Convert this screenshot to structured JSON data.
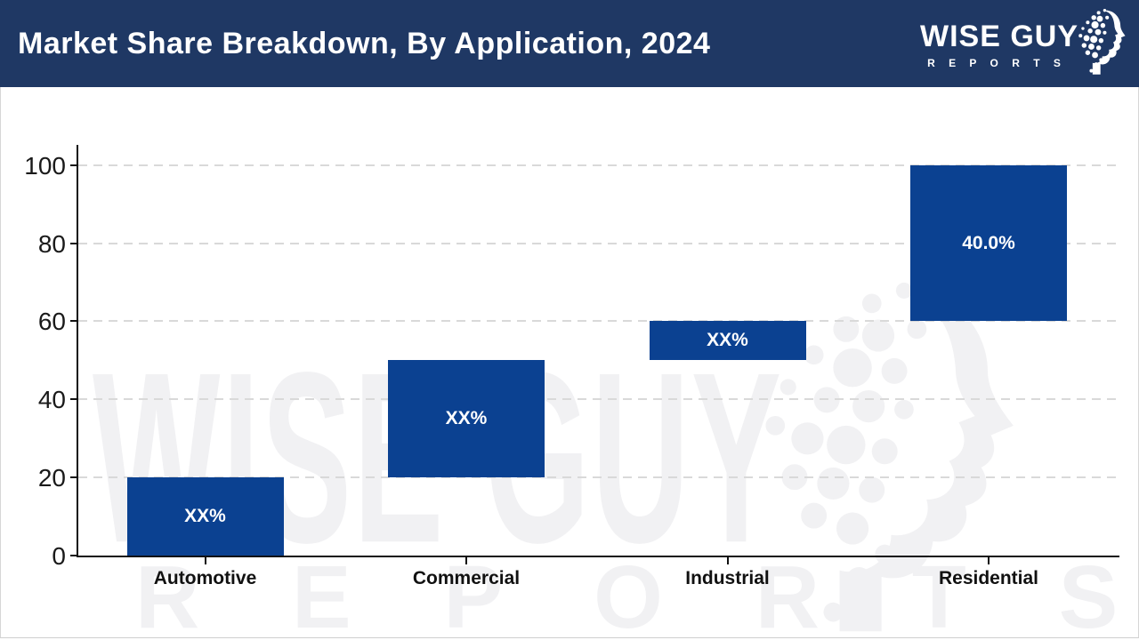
{
  "header": {
    "title": "Market Share Breakdown, By Application, 2024",
    "bg_color": "#1F3864",
    "logo": {
      "line1": "WISE GUY",
      "line2": "R E P O R T S"
    }
  },
  "watermark": {
    "line1": "WISE GUY",
    "line2": "R E P O R T S"
  },
  "chart_data": {
    "type": "bar",
    "variant": "floating-waterfall",
    "title": "Market Share Breakdown, By Application, 2024",
    "categories": [
      "Automotive",
      "Commercial",
      "Industrial",
      "Residential"
    ],
    "segments": [
      {
        "category": "Automotive",
        "start": 0,
        "end": 20,
        "label": "XX%"
      },
      {
        "category": "Commercial",
        "start": 20,
        "end": 50,
        "label": "XX%"
      },
      {
        "category": "Industrial",
        "start": 50,
        "end": 60,
        "label": "XX%"
      },
      {
        "category": "Residential",
        "start": 60,
        "end": 100,
        "label": "40.0%"
      }
    ],
    "yticks": [
      0,
      20,
      40,
      60,
      80,
      100
    ],
    "ylim": [
      0,
      105
    ],
    "grid": "horizontal-dashed",
    "legend": "none",
    "bar_color": "#0B4191",
    "bar_label_color": "#FFFFFF",
    "axis_color": "#111111",
    "gridline_color": "#D9D9D9"
  }
}
